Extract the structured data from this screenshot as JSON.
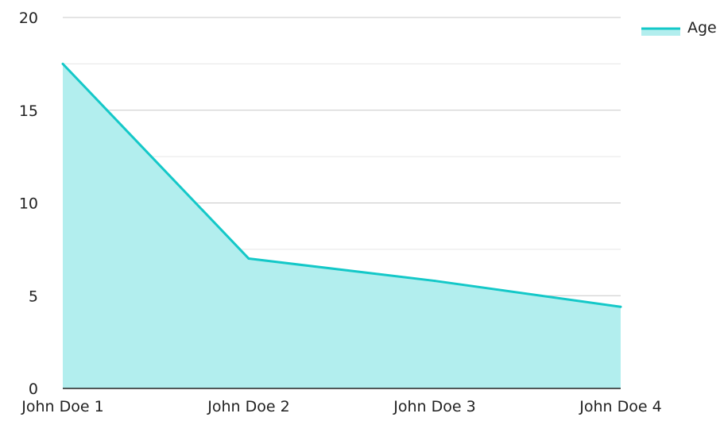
{
  "chart_data": {
    "type": "area",
    "categories": [
      "John Doe 1",
      "John Doe 2",
      "John Doe 3",
      "John Doe 4"
    ],
    "series": [
      {
        "name": "Age",
        "values": [
          17.5,
          7.0,
          5.8,
          4.4
        ]
      }
    ],
    "ylim": [
      0,
      20
    ],
    "yticks": [
      "0",
      "5",
      "10",
      "15",
      "20"
    ],
    "grid": true,
    "legend": "top-right",
    "line_color": "#14c8c8",
    "fill_color": "#b2eeee"
  }
}
